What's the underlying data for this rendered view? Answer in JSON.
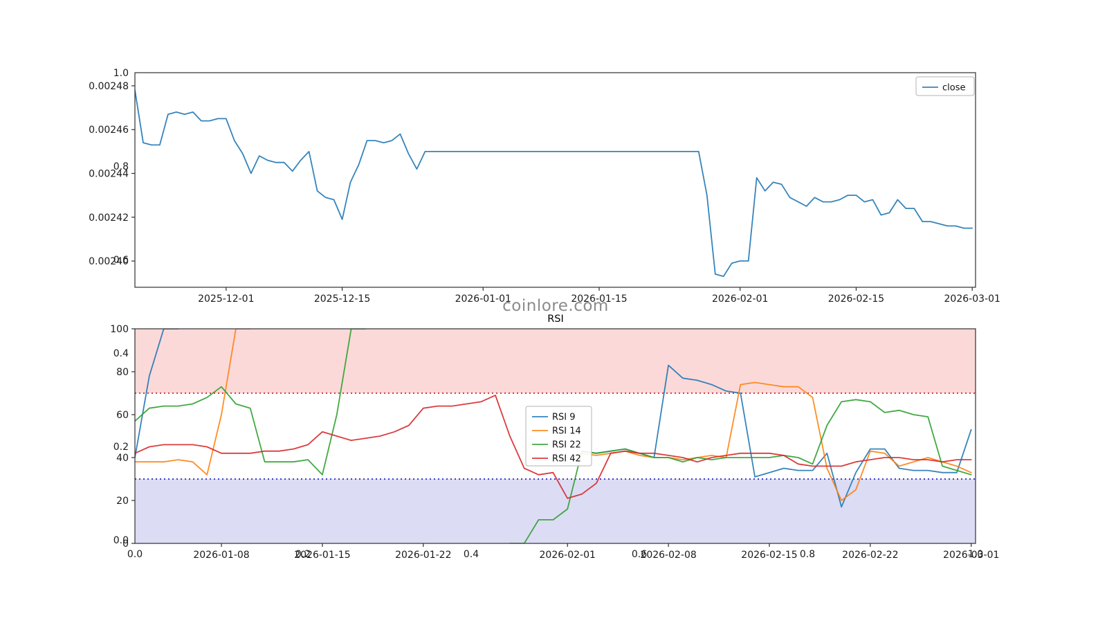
{
  "watermark": "coinlore.com",
  "figure_axis_ticks": {
    "left_labels": [
      "1.0",
      "0.8",
      "0.6",
      "0.4",
      "0.2",
      "0.0"
    ],
    "bottom_labels": [
      "0.0",
      "0.2",
      "0.4",
      "0.6",
      "0.8",
      "1.0"
    ]
  },
  "chart_data": [
    {
      "type": "line",
      "title": "",
      "xlabel": "",
      "ylabel": "",
      "grid": false,
      "legend": [
        "close"
      ],
      "legend_position": "upper right",
      "x_tick_labels": [
        "2025-12-01",
        "2025-12-15",
        "2026-01-01",
        "2026-01-15",
        "2026-02-01",
        "2026-02-15",
        "2026-03-01"
      ],
      "x_tick_indices": [
        11,
        25,
        42,
        56,
        73,
        87,
        101
      ],
      "y_tick_labels": [
        "0.00240",
        "0.00242",
        "0.00244",
        "0.00246",
        "0.00248"
      ],
      "y_tick_values": [
        0.0024,
        0.00242,
        0.00244,
        0.00246,
        0.00248
      ],
      "xlim": [
        0,
        101.4
      ],
      "ylim": [
        0.002388,
        0.002486
      ],
      "series": [
        {
          "name": "close",
          "color": "#1f77b4",
          "values": [
            0.002478,
            0.002454,
            0.002453,
            0.002453,
            0.002467,
            0.002468,
            0.002467,
            0.002468,
            0.002464,
            0.002464,
            0.002465,
            0.002465,
            0.002455,
            0.002449,
            0.00244,
            0.002448,
            0.002446,
            0.002445,
            0.002445,
            0.002441,
            0.002446,
            0.00245,
            0.002432,
            0.002429,
            0.002428,
            0.002419,
            0.002436,
            0.002444,
            0.002455,
            0.002455,
            0.002454,
            0.002455,
            0.002458,
            0.002449,
            0.002442,
            0.00245,
            0.00245,
            0.00245,
            0.00245,
            0.00245,
            0.00245,
            0.00245,
            0.00245,
            0.00245,
            0.00245,
            0.00245,
            0.00245,
            0.00245,
            0.00245,
            0.00245,
            0.00245,
            0.00245,
            0.00245,
            0.00245,
            0.00245,
            0.00245,
            0.00245,
            0.00245,
            0.00245,
            0.00245,
            0.00245,
            0.00245,
            0.00245,
            0.00245,
            0.00245,
            0.00245,
            0.00245,
            0.00245,
            0.00245,
            0.00243,
            0.002394,
            0.002393,
            0.002399,
            0.0024,
            0.0024,
            0.002438,
            0.002432,
            0.002436,
            0.002435,
            0.002429,
            0.002427,
            0.002425,
            0.002429,
            0.002427,
            0.002427,
            0.002428,
            0.00243,
            0.00243,
            0.002427,
            0.002428,
            0.002421,
            0.002422,
            0.002428,
            0.002424,
            0.002424,
            0.002418,
            0.002418,
            0.002417,
            0.002416,
            0.002416,
            0.002415,
            0.002415
          ]
        }
      ]
    },
    {
      "type": "line",
      "title": "RSI",
      "xlabel": "",
      "ylabel": "",
      "grid": false,
      "legend": [
        "RSI 9",
        "RSI 14",
        "RSI 22",
        "RSI 42"
      ],
      "legend_position": "center",
      "x_tick_labels": [
        "2026-01-08",
        "2026-01-15",
        "2026-01-22",
        "2026-02-01",
        "2026-02-08",
        "2026-02-15",
        "2026-02-22",
        "2026-03-01"
      ],
      "x_tick_indices": [
        6,
        13,
        20,
        30,
        37,
        44,
        51,
        58
      ],
      "y_tick_labels": [
        "0",
        "20",
        "40",
        "60",
        "80",
        "100"
      ],
      "y_tick_values": [
        0,
        20,
        40,
        60,
        80,
        100
      ],
      "xlim": [
        0,
        58.3
      ],
      "ylim": [
        0,
        100
      ],
      "bands": [
        {
          "name": "overbought-band",
          "y0": 70,
          "y1": 100,
          "color": "#fbd9d9"
        },
        {
          "name": "oversold-band",
          "y0": 0,
          "y1": 30,
          "color": "#dcdcf5"
        }
      ],
      "hlines": [
        {
          "name": "overbought-line",
          "y": 70,
          "color": "#cc0000",
          "style": "dotted"
        },
        {
          "name": "oversold-line",
          "y": 30,
          "color": "#0000bb",
          "style": "dotted"
        }
      ],
      "series": [
        {
          "name": "RSI 9",
          "color": "#1f77b4",
          "values": [
            40,
            78,
            100,
            100,
            null,
            null,
            null,
            null,
            null,
            null,
            null,
            null,
            null,
            null,
            null,
            null,
            null,
            null,
            null,
            null,
            null,
            null,
            null,
            null,
            null,
            null,
            null,
            null,
            null,
            null,
            null,
            43,
            42,
            43,
            44,
            42,
            40,
            83,
            77,
            76,
            74,
            71,
            70,
            31,
            33,
            35,
            34,
            34,
            42,
            17,
            33,
            44,
            44,
            35,
            34,
            34,
            33,
            33,
            53
          ]
        },
        {
          "name": "RSI 14",
          "color": "#ff7f0e",
          "values": [
            38,
            38,
            38,
            39,
            38,
            32,
            60,
            100,
            100,
            null,
            null,
            null,
            null,
            null,
            null,
            null,
            null,
            null,
            null,
            null,
            null,
            null,
            null,
            null,
            null,
            null,
            null,
            null,
            null,
            null,
            null,
            42,
            41,
            42,
            43,
            41,
            40,
            40,
            39,
            40,
            41,
            40,
            74,
            75,
            74,
            73,
            73,
            68,
            35,
            20,
            25,
            43,
            42,
            36,
            38,
            40,
            38,
            36,
            33
          ]
        },
        {
          "name": "RSI 22",
          "color": "#2ca02c",
          "values": [
            57,
            63,
            64,
            64,
            65,
            68,
            73,
            65,
            63,
            38,
            38,
            38,
            39,
            32,
            60,
            100,
            100,
            null,
            null,
            null,
            null,
            null,
            null,
            null,
            null,
            null,
            0,
            0,
            11,
            11,
            16,
            43,
            42,
            43,
            44,
            42,
            40,
            40,
            38,
            40,
            39,
            40,
            40,
            40,
            40,
            41,
            40,
            37,
            55,
            66,
            67,
            66,
            61,
            62,
            60,
            59,
            36,
            34,
            32
          ]
        },
        {
          "name": "RSI 42",
          "color": "#d62728",
          "values": [
            42,
            45,
            46,
            46,
            46,
            45,
            42,
            42,
            42,
            43,
            43,
            44,
            46,
            52,
            50,
            48,
            49,
            50,
            52,
            55,
            63,
            64,
            64,
            65,
            66,
            69,
            50,
            35,
            32,
            33,
            21,
            23,
            28,
            42,
            43,
            42,
            42,
            41,
            40,
            38,
            40,
            41,
            42,
            42,
            42,
            41,
            37,
            36,
            36,
            36,
            38,
            39,
            40,
            40,
            39,
            39,
            38,
            39,
            39
          ]
        }
      ]
    }
  ]
}
